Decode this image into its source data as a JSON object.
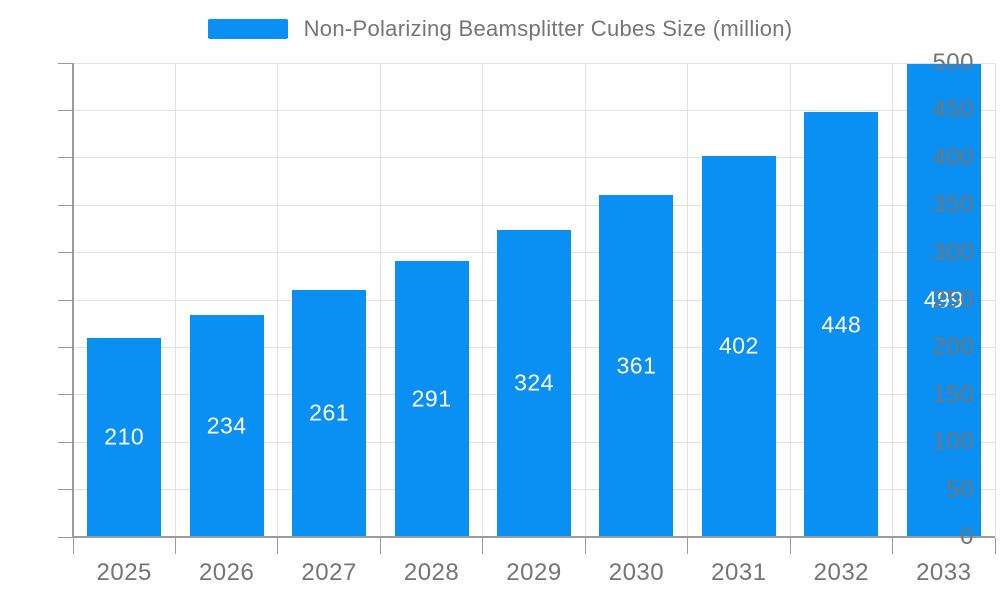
{
  "legend": {
    "label": "Non-Polarizing Beamsplitter Cubes Size (million)"
  },
  "chart_data": {
    "type": "bar",
    "title": "",
    "xlabel": "",
    "ylabel": "",
    "categories": [
      "2025",
      "2026",
      "2027",
      "2028",
      "2029",
      "2030",
      "2031",
      "2032",
      "2033"
    ],
    "values": [
      210,
      234,
      261,
      291,
      324,
      361,
      402,
      448,
      499
    ],
    "series_name": "Non-Polarizing Beamsplitter Cubes Size (million)",
    "ylim": [
      0,
      500
    ],
    "yticks": [
      0,
      50,
      100,
      150,
      200,
      250,
      300,
      350,
      400,
      450,
      500
    ],
    "grid": true,
    "legend_position": "top",
    "value_labels": "inside-center",
    "colors": {
      "bar": "#0a8ff2",
      "value_label": "#ffffff",
      "axis_text": "#757575",
      "gridline": "#e2e2e2",
      "axis_line": "#9b9b9b"
    }
  }
}
